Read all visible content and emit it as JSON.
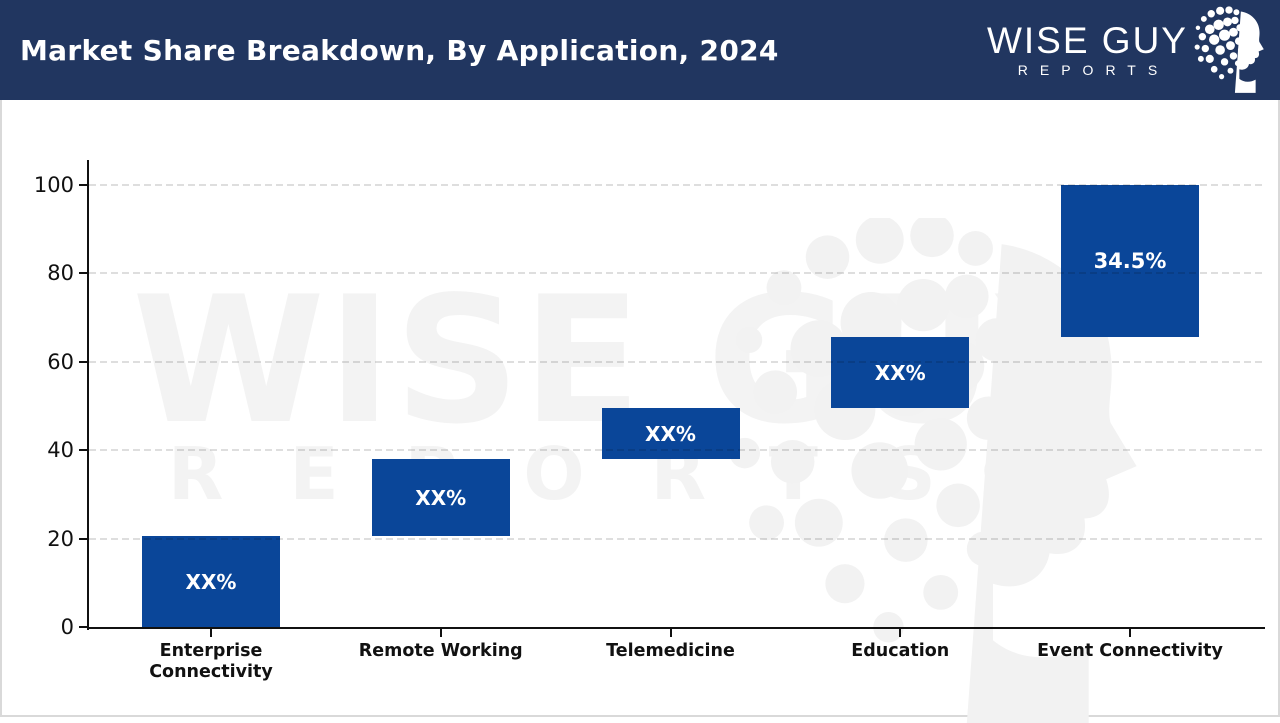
{
  "header": {
    "title": "Market Share Breakdown, By Application, 2024",
    "logo": {
      "line1": "WISE GUY",
      "line2": "REPORTS"
    },
    "bg_color": "#213660"
  },
  "watermark": {
    "line1": "WISE GUY",
    "line2": "REPORTS"
  },
  "chart_data": {
    "type": "bar",
    "subtype": "waterfall-floating-bars",
    "title": "Market Share Breakdown, By Application, 2024",
    "xlabel": "",
    "ylabel": "",
    "categories": [
      "Enterprise\nConnectivity",
      "Remote Working",
      "Telemedicine",
      "Education",
      "Event Connectivity"
    ],
    "segments": [
      {
        "category": "Enterprise Connectivity",
        "start": 0,
        "end": 20.5,
        "value": 20.5,
        "label": "XX%"
      },
      {
        "category": "Remote Working",
        "start": 20.5,
        "end": 38,
        "value": 17.5,
        "label": "XX%"
      },
      {
        "category": "Telemedicine",
        "start": 38,
        "end": 49.5,
        "value": 11.5,
        "label": "XX%"
      },
      {
        "category": "Education",
        "start": 49.5,
        "end": 65.5,
        "value": 16,
        "label": "XX%"
      },
      {
        "category": "Event Connectivity",
        "start": 65.5,
        "end": 100,
        "value": 34.5,
        "label": "34.5%"
      }
    ],
    "yticks": [
      0,
      20,
      40,
      60,
      80,
      100
    ],
    "ylim": [
      0,
      100
    ],
    "grid": "horizontal dashed",
    "legend": "none",
    "bar_color": "#0a4699",
    "bar_label_color": "#ffffff",
    "axis_color": "#111111"
  }
}
